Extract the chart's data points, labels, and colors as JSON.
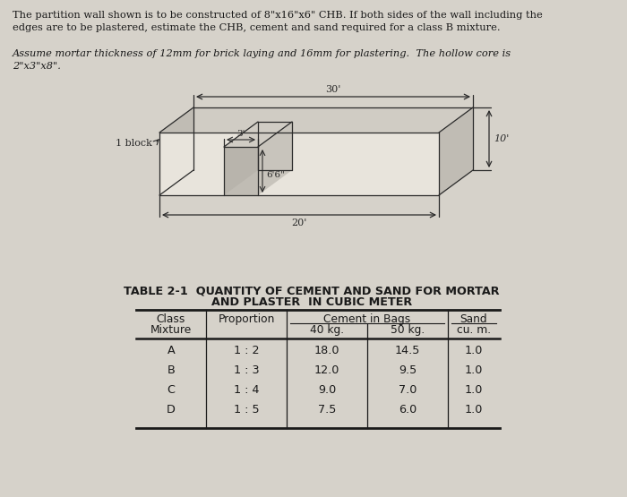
{
  "bg_color": "#d6d2ca",
  "text_color": "#1a1a1a",
  "paragraph1": "The partition wall shown is to be constructed of 8\"x16\"x6\" CHB. If both sides of the wall including the\nedges are to be plastered, estimate the CHB, cement and sand required for a class B mixture.",
  "paragraph2": "Assume mortar thickness of 12mm for brick laying and 16mm for plastering.  The hollow core is\n2\"x3\"x8\".",
  "table_title1": "TABLE 2-1  QUANTITY OF CEMENT AND SAND FOR MORTAR",
  "table_title2": "AND PLASTER  IN CUBIC METER",
  "rows": [
    [
      "A",
      "1 : 2",
      "18.0",
      "14.5",
      "1.0"
    ],
    [
      "B",
      "1 : 3",
      "12.0",
      "9.5",
      "1.0"
    ],
    [
      "C",
      "1 : 4",
      "9.0",
      "7.0",
      "1.0"
    ],
    [
      "D",
      "1 : 5",
      "7.5",
      "6.0",
      "1.0"
    ]
  ],
  "dim_30": "30'",
  "dim_20": "20'",
  "dim_height": "10'",
  "dim_opening_w": "3'",
  "dim_opening_h": "6'6\"",
  "label_block": "1 block",
  "wall_face_color": "#e8e4dc",
  "wall_top_color": "#d0ccc4",
  "wall_side_color": "#c0bcb4",
  "wall_line_color": "#2a2a2a",
  "line_width": 0.9
}
